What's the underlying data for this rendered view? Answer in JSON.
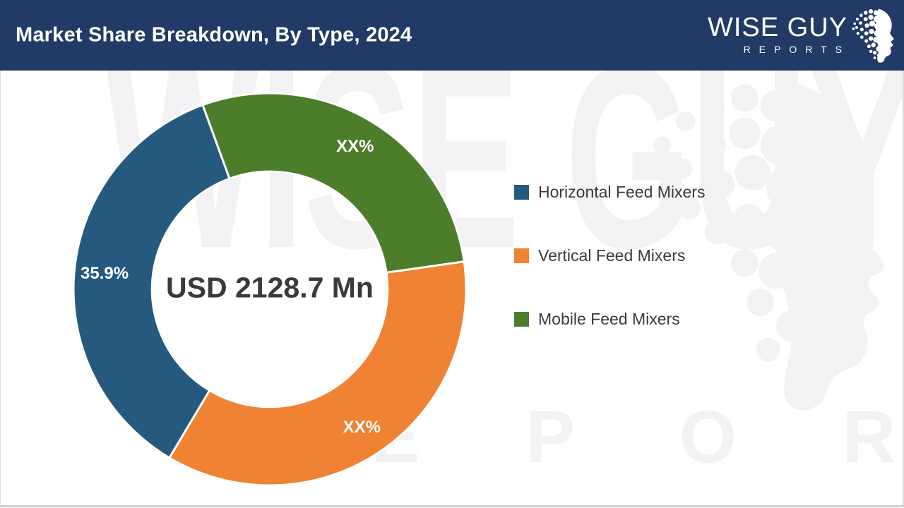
{
  "header": {
    "bg_color": "#223A66",
    "title": "Market Share Breakdown, By Type, 2024",
    "logo": {
      "line1": "WISE GUY",
      "line2": "REPORTS"
    }
  },
  "chart_data": {
    "type": "pie",
    "subtype": "donut",
    "title": "Market Share Breakdown, By Type, 2024",
    "center_label": "USD 2128.7 Mn",
    "donut_hole_ratio": 0.6,
    "start_angle_deg": -20,
    "legend_position": "right",
    "slices": [
      {
        "name": "Mobile Feed Mixers",
        "value_pct": 28.3,
        "display_label": "XX%",
        "color": "#4C7D2B"
      },
      {
        "name": "Vertical Feed Mixers",
        "value_pct": 35.8,
        "display_label": "XX%",
        "color": "#EF8233"
      },
      {
        "name": "Horizontal Feed Mixers",
        "value_pct": 35.9,
        "display_label": "35.9%",
        "color": "#255A7E"
      }
    ]
  },
  "legend": {
    "items": [
      {
        "label": "Horizontal Feed Mixers",
        "color": "#255A7E"
      },
      {
        "label": "Vertical Feed Mixers",
        "color": "#EF8233"
      },
      {
        "label": "Mobile Feed Mixers",
        "color": "#4C7D2B"
      }
    ]
  },
  "watermark": {
    "line1": "WISE GUY",
    "line2": "R E P O R T S"
  }
}
